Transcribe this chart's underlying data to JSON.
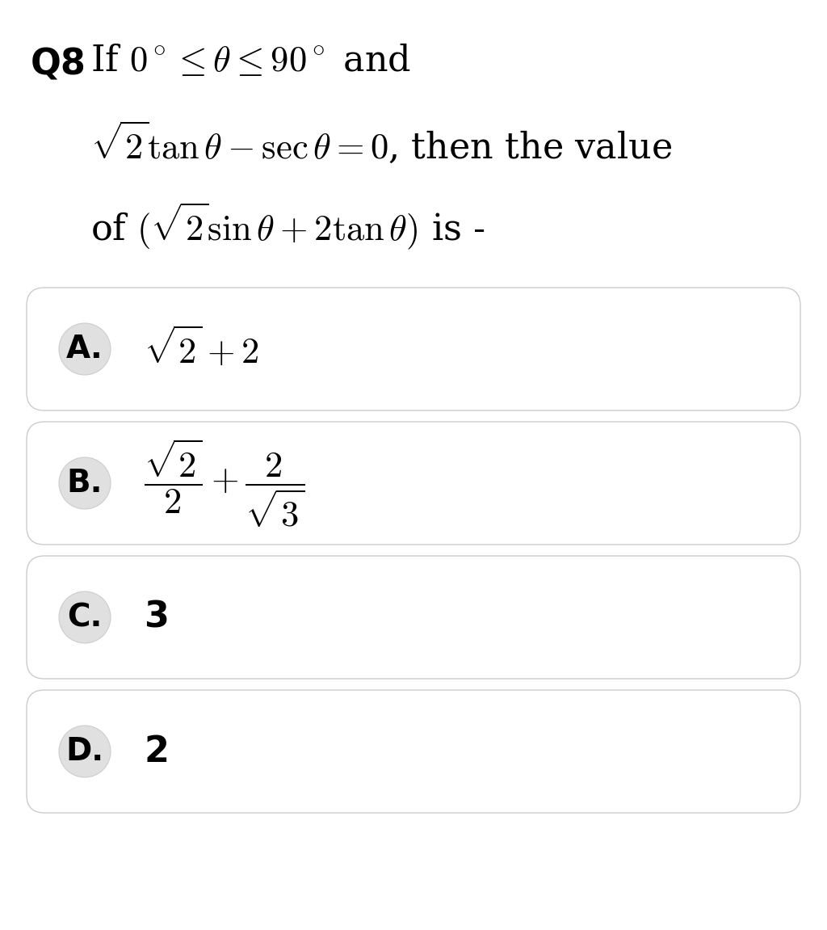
{
  "bg_color": "#ffffff",
  "text_color": "#000000",
  "box_fill": "#ffffff",
  "box_edge": "#cccccc",
  "circle_fill": "#e0e0e0",
  "circle_edge": "#cccccc",
  "q_label": "Q8",
  "q_line1_prefix": "If 0° ≤ θ ≤ 90° and",
  "q_line2": "$\\sqrt{2}\\mathit{tan}\\theta - \\mathit{sec}\\theta = 0$, then the value",
  "q_line3": "of $(\\sqrt{2}\\mathit{sin}\\theta + 2\\mathit{tan}\\theta)$ is -",
  "options": [
    {
      "label": "A.",
      "text_math": "$\\sqrt{2} + 2$"
    },
    {
      "label": "B.",
      "text_math": "$\\dfrac{\\sqrt{2}}{2} + \\dfrac{2}{\\sqrt{3}}$"
    },
    {
      "label": "C.",
      "text_plain": "3"
    },
    {
      "label": "D.",
      "text_plain": "2"
    }
  ],
  "figw": 10.24,
  "figh": 11.51,
  "dpi": 100
}
